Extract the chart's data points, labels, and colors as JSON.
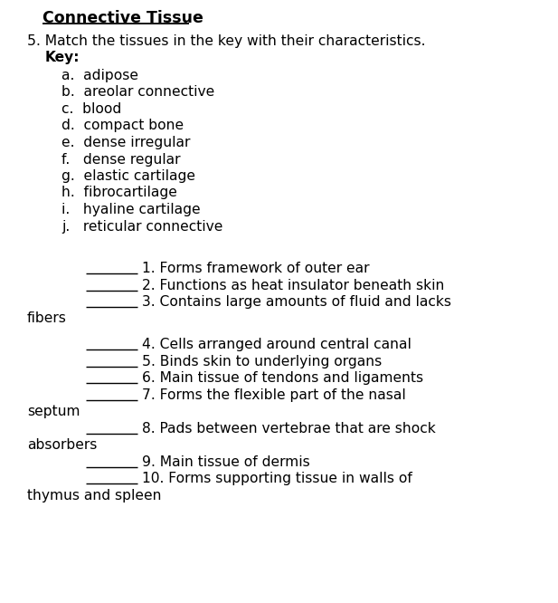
{
  "title": "Connective Tissue",
  "question": "5. Match the tissues in the key with their characteristics.",
  "key_label": "Key:",
  "key_items": [
    "a.  adipose",
    "b.  areolar connective",
    "c.  blood",
    "d.  compact bone",
    "e.  dense irregular",
    "f.   dense regular",
    "g.  elastic cartilage",
    "h.  fibrocartilage",
    "i.   hyaline cartilage",
    "j.   reticular connective"
  ],
  "numbered_items": [
    {
      "num": "1.",
      "line1": "Forms framework of outer ear",
      "line2": null
    },
    {
      "num": "2.",
      "line1": "Functions as heat insulator beneath skin",
      "line2": null
    },
    {
      "num": "3.",
      "line1": "Contains large amounts of fluid and lacks",
      "line2": "fibers"
    },
    {
      "num": "4.",
      "line1": "Cells arranged around central canal",
      "line2": null
    },
    {
      "num": "5.",
      "line1": "Binds skin to underlying organs",
      "line2": null
    },
    {
      "num": "6.",
      "line1": "Main tissue of tendons and ligaments",
      "line2": null
    },
    {
      "num": "7.",
      "line1": "Forms the flexible part of the nasal",
      "line2": "septum"
    },
    {
      "num": "8.",
      "line1": "Pads between vertebrae that are shock",
      "line2": "absorbers"
    },
    {
      "num": "9.",
      "line1": "Main tissue of dermis",
      "line2": null
    },
    {
      "num": "10.",
      "line1": "Forms supporting tissue in walls of",
      "line2": "thymus and spleen"
    }
  ],
  "background_color": "#ffffff",
  "text_color": "#000000",
  "line_color": "#000000",
  "title_fontsize": 12.5,
  "body_fontsize": 11.2
}
